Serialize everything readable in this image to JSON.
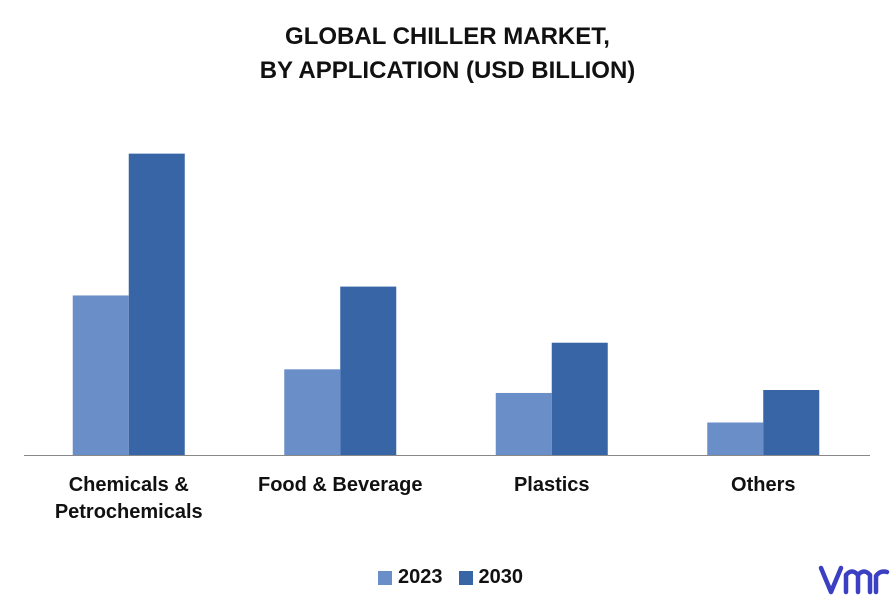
{
  "title_line1": "GLOBAL CHILLER MARKET,",
  "title_line2": "BY APPLICATION (USD BILLION)",
  "colors": {
    "series_2023": "#6a8ec7",
    "series_2030": "#3765a6",
    "axis": "#888888",
    "logo": "#3b3fc1"
  },
  "chart_data": {
    "type": "bar",
    "categories": [
      "Chemicals &\nPetrochemicals",
      "Food & Beverage",
      "Plastics",
      "Others"
    ],
    "series": [
      {
        "name": "2023",
        "values": [
          5.4,
          2.9,
          2.1,
          1.1
        ]
      },
      {
        "name": "2030",
        "values": [
          10.2,
          5.7,
          3.8,
          2.2
        ]
      }
    ],
    "ylim": [
      0,
      11
    ],
    "grid": false,
    "legend": "bottom",
    "xlabel": "",
    "ylabel": ""
  },
  "legend": {
    "items": [
      {
        "label": "2023"
      },
      {
        "label": "2030"
      }
    ]
  },
  "logo": {
    "icon": "vmr-logo-icon"
  }
}
